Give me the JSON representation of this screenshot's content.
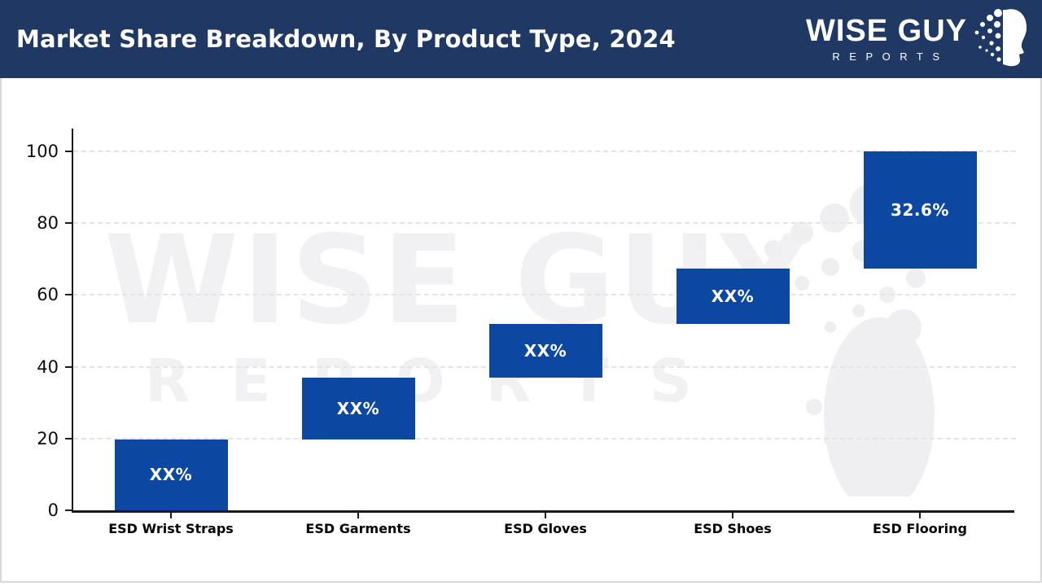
{
  "header": {
    "title": "Market Share Breakdown, By Product Type, 2024",
    "logo": {
      "line1": "WISE GUY",
      "line2": "REPORTS"
    },
    "bg_color": "#1f3864"
  },
  "watermark": {
    "line1": "WISE GUY",
    "line2": "REPORTS"
  },
  "chart_data": {
    "type": "bar",
    "subtype": "waterfall-stacked-composition",
    "title": "Market Share Breakdown, By Product Type, 2024",
    "xlabel": "",
    "ylabel": "",
    "categories": [
      "ESD Wrist Straps",
      "ESD Garments",
      "ESD Gloves",
      "ESD Shoes",
      "ESD Flooring"
    ],
    "segments": [
      {
        "category": "ESD Wrist Straps",
        "start": 0,
        "end": 19.8,
        "label": "XX%"
      },
      {
        "category": "ESD Garments",
        "start": 19.8,
        "end": 37.0,
        "label": "XX%"
      },
      {
        "category": "ESD Gloves",
        "start": 37.0,
        "end": 52.0,
        "label": "XX%"
      },
      {
        "category": "ESD Shoes",
        "start": 52.0,
        "end": 67.4,
        "label": "XX%"
      },
      {
        "category": "ESD Flooring",
        "start": 67.4,
        "end": 100.0,
        "label": "32.6%"
      }
    ],
    "y_ticks": [
      0,
      20,
      40,
      60,
      80,
      100
    ],
    "ylim": [
      0,
      106
    ],
    "grid": "horizontal-dashed",
    "legend": "none",
    "bar_color": "#0c47a1",
    "bar_label_color": "#ffffff",
    "axis_color": "#1a1a1a",
    "gridline_color": "#e4e4e6"
  }
}
